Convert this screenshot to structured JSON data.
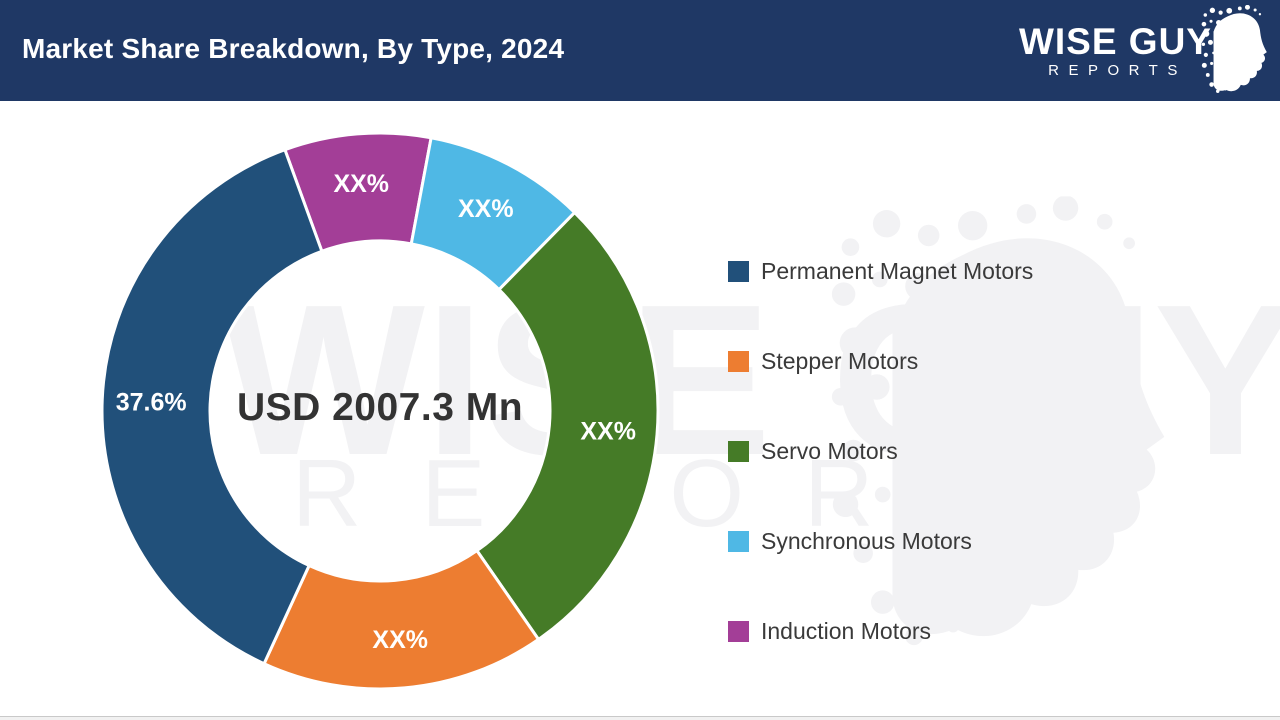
{
  "colors": {
    "page_bg": "#FFFFFF",
    "header_bg": "#1F3865",
    "title_text": "#FFFFFF",
    "watermark": "#F2F2F4",
    "center_text": "#333333",
    "legend_text": "#3A3A3A",
    "slice_label": "#FFFFFF",
    "footer_bg": "#F1F1F1",
    "footer_line": "#C9C9C9"
  },
  "header": {
    "title": "Market Share Breakdown, By Type, 2024",
    "logo": {
      "line1": "WISE GUY",
      "line2": "REPORTS"
    }
  },
  "watermark": {
    "line1": "WISE GUY",
    "line2": "REPORTS"
  },
  "chart_data": {
    "type": "pie",
    "subtype": "donut",
    "title": "Market Share Breakdown, By Type, 2024",
    "center_label": "USD 2007.3 Mn",
    "legend_position": "right",
    "center": [
      380,
      411
    ],
    "outer_radius": 278,
    "inner_radius": 170,
    "start_angle_deg": 340,
    "clockwise": true,
    "draw_order": [
      4,
      3,
      2,
      1,
      0
    ],
    "slices": [
      {
        "id": "permanent-magnet-motors",
        "label": "Permanent Magnet Motors",
        "value": 37.6,
        "display_label": "37.6%",
        "color": "#21507A"
      },
      {
        "id": "stepper-motors",
        "label": "Stepper Motors",
        "value": 16.5,
        "display_label": "XX%",
        "color": "#ED7D31"
      },
      {
        "id": "servo-motors",
        "label": "Servo Motors",
        "value": 28.0,
        "display_label": "XX%",
        "color": "#457B27"
      },
      {
        "id": "synchronous-motors",
        "label": "Synchronous Motors",
        "value": 9.4,
        "display_label": "XX%",
        "color": "#4FB8E5"
      },
      {
        "id": "induction-motors",
        "label": "Induction Motors",
        "value": 8.5,
        "display_label": "XX%",
        "color": "#A33E97"
      }
    ]
  }
}
